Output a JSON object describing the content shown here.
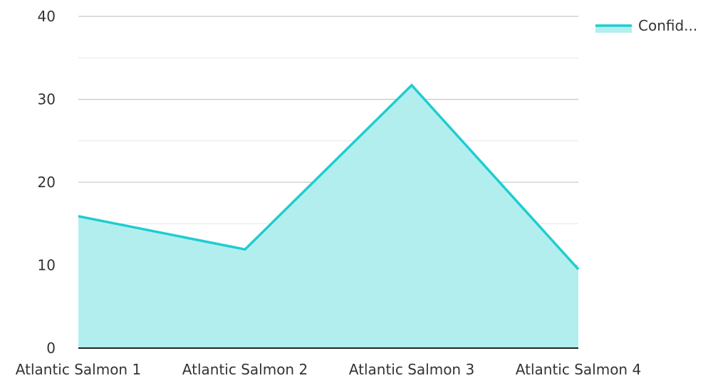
{
  "chart_data": {
    "type": "area",
    "categories": [
      "Atlantic Salmon 1",
      "Atlantic Salmon 2",
      "Atlantic Salmon 3",
      "Atlantic Salmon 4"
    ],
    "series": [
      {
        "name": "Confid...",
        "values": [
          15.9,
          11.9,
          31.7,
          9.5
        ]
      }
    ],
    "ylim": [
      0,
      40
    ],
    "yticks": [
      0,
      10,
      20,
      30,
      40
    ],
    "grid": true,
    "minor_grid": true,
    "legend": "top-right",
    "colors": {
      "line": "#1ecdd0",
      "fill": "#b3eeee",
      "major_grid": "#bdbdbd",
      "minor_grid": "#e6e6e6",
      "axis": "#222222"
    }
  }
}
